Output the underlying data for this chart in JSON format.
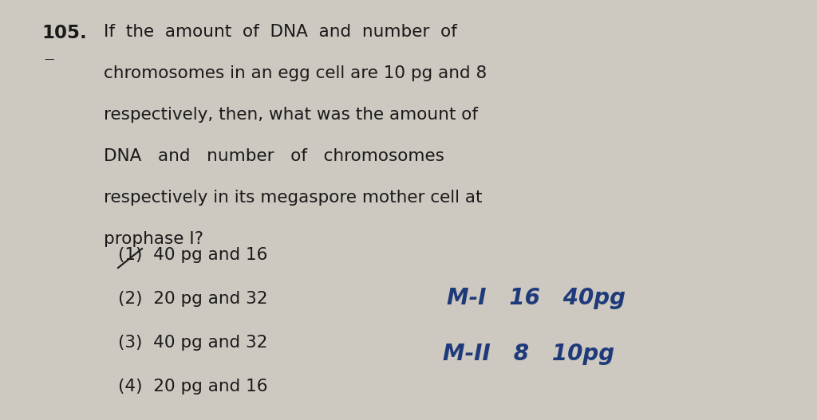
{
  "background_color": "#cdc8c0",
  "text_color": "#1a1a1a",
  "q_number": "105.",
  "q_lines": [
    "If  the  amount  of  DNA  and  number  of",
    "chromosomes in an egg cell are 10 pg and 8",
    "respectively, then, what was the amount of",
    "DNA   and   number   of   chromosomes",
    "respectively in its megaspore mother cell at",
    "prophase I?"
  ],
  "options": [
    "(1)  40 pg and 16",
    "(2)  20 pg and 32",
    "(3)  40 pg and 32",
    "(4)  20 pg and 16"
  ],
  "hw_line1": "M-I   16   40pg",
  "hw_line2": "M-II   8   10pg",
  "hw_color": "#1e3a7a",
  "font_size_body": 15.5,
  "font_size_hw": 20,
  "fig_width": 10.24,
  "fig_height": 5.27
}
